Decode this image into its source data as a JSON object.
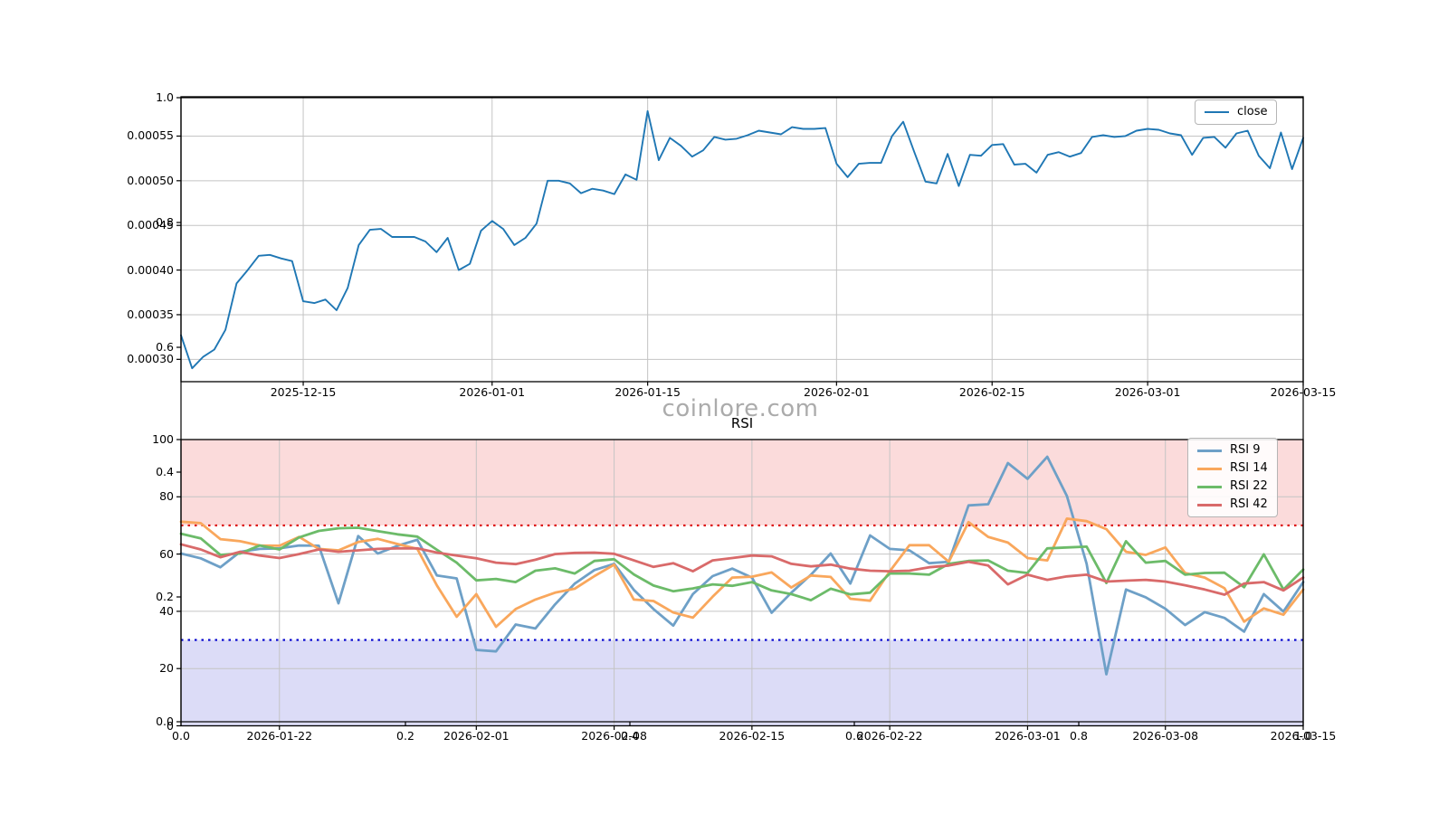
{
  "watermark": "coinlore.com",
  "figure": {
    "background": "#ffffff",
    "grid_color": "#c4c4c4",
    "spine_color": "#000000"
  },
  "overlay_axis": {
    "y_tick_labels": [
      "1.0",
      "0.8",
      "0.6",
      "0.4",
      "0.2",
      "0.0"
    ],
    "x_tick_labels": [
      "0.0",
      "0.2",
      "0.4",
      "0.6",
      "0.8",
      "1.0"
    ]
  },
  "chart_data": [
    {
      "id": "price",
      "type": "line",
      "title": "",
      "x_start_date": "2025-12-04",
      "x_end_date": "2026-03-15",
      "x_unit": "day",
      "legend_position": "upper right",
      "grid": true,
      "ylim": [
        0.000275,
        0.000594
      ],
      "x_ticks": [
        {
          "label": "2025-12-15",
          "index": 11
        },
        {
          "label": "2026-01-01",
          "index": 28
        },
        {
          "label": "2026-01-15",
          "index": 42
        },
        {
          "label": "2026-02-01",
          "index": 59
        },
        {
          "label": "2026-02-15",
          "index": 73
        },
        {
          "label": "2026-03-01",
          "index": 87
        },
        {
          "label": "2026-03-15",
          "index": 101
        }
      ],
      "y_ticks": [
        {
          "label": "0.00055",
          "value": 0.00055
        },
        {
          "label": "0.00050",
          "value": 0.0005
        },
        {
          "label": "0.00045",
          "value": 0.00045
        },
        {
          "label": "0.00040",
          "value": 0.0004
        },
        {
          "label": "0.00035",
          "value": 0.00035
        },
        {
          "label": "0.00030",
          "value": 0.0003
        }
      ],
      "series": [
        {
          "name": "close",
          "color": "#1f77b4",
          "values": [
            0.000327,
            0.00029,
            0.000303,
            0.000311,
            0.000333,
            0.000385,
            0.0004,
            0.000416,
            0.000417,
            0.000413,
            0.00041,
            0.000365,
            0.000363,
            0.000367,
            0.000355,
            0.00038,
            0.000428,
            0.000445,
            0.000446,
            0.000437,
            0.000437,
            0.000437,
            0.000432,
            0.00042,
            0.000436,
            0.0004,
            0.000407,
            0.000444,
            0.000455,
            0.000446,
            0.000428,
            0.000436,
            0.000452,
            0.0005,
            0.0005,
            0.000497,
            0.000486,
            0.000491,
            0.000489,
            0.000485,
            0.000507,
            0.000501,
            0.000578,
            0.000523,
            0.000548,
            0.000539,
            0.000527,
            0.000534,
            0.000549,
            0.000546,
            0.000547,
            0.000551,
            0.000556,
            0.000554,
            0.000552,
            0.00056,
            0.000558,
            0.000558,
            0.000559,
            0.000519,
            0.000504,
            0.000519,
            0.00052,
            0.00052,
            0.00055,
            0.000566,
            0.000532,
            0.000499,
            0.000497,
            0.00053,
            0.000494,
            0.000529,
            0.000528,
            0.00054,
            0.000541,
            0.000518,
            0.000519,
            0.000509,
            0.000529,
            0.000532,
            0.000527,
            0.000531,
            0.000549,
            0.000551,
            0.000549,
            0.00055,
            0.000556,
            0.000558,
            0.000557,
            0.000553,
            0.000551,
            0.000529,
            0.000548,
            0.000549,
            0.000537,
            0.000553,
            0.000556,
            0.000528,
            0.000514,
            0.000554,
            0.000513,
            0.000548
          ]
        }
      ]
    },
    {
      "id": "rsi",
      "type": "line",
      "title": "RSI",
      "x_start_date": "2026-01-17",
      "x_end_date": "2026-03-15",
      "x_unit": "day",
      "legend_position": "upper right",
      "grid": true,
      "ylim": [
        0,
        100
      ],
      "bands": [
        {
          "name": "overbought",
          "from": 70,
          "to": 100,
          "color": "#fbdbdb"
        },
        {
          "name": "oversold",
          "from": 0,
          "to": 30,
          "color": "#dcdcf7"
        }
      ],
      "thresholds": [
        {
          "value": 70,
          "color": "#dc0000",
          "style": "dotted"
        },
        {
          "value": 30,
          "color": "#0000cd",
          "style": "dotted"
        }
      ],
      "x_ticks": [
        {
          "label": "2026-01-22",
          "index": 5
        },
        {
          "label": "2026-02-01",
          "index": 15
        },
        {
          "label": "2026-02-08",
          "index": 22
        },
        {
          "label": "2026-02-15",
          "index": 29
        },
        {
          "label": "2026-02-22",
          "index": 36
        },
        {
          "label": "2026-03-01",
          "index": 43
        },
        {
          "label": "2026-03-08",
          "index": 50
        },
        {
          "label": "2026-03-15",
          "index": 57
        }
      ],
      "y_ticks": [
        {
          "label": "100",
          "value": 100
        },
        {
          "label": "80",
          "value": 80
        },
        {
          "label": "60",
          "value": 60
        },
        {
          "label": "40",
          "value": 40
        },
        {
          "label": "20",
          "value": 20
        },
        {
          "label": "0",
          "value": 0
        }
      ],
      "series": [
        {
          "name": "RSI 9",
          "color": "#6ea0c7",
          "values": [
            60.2,
            58.5,
            55.4,
            60.8,
            61.8,
            62.0,
            63.0,
            62.9,
            42.8,
            66.3,
            60.2,
            62.9,
            65.0,
            52.5,
            51.5,
            26.5,
            26.0,
            35.4,
            34.0,
            42.4,
            49.7,
            54.4,
            56.6,
            47.5,
            40.8,
            35.0,
            46.0,
            52.3,
            54.9,
            51.8,
            39.5,
            46.5,
            52.8,
            60.2,
            49.7,
            66.5,
            61.8,
            61.3,
            56.8,
            57.3,
            77.0,
            77.4,
            91.8,
            86.3,
            94.0,
            80.3,
            56.6,
            18.0,
            47.6,
            44.9,
            40.9,
            35.2,
            39.7,
            37.7,
            32.9,
            46.0,
            39.9,
            50.2
          ]
        },
        {
          "name": "RSI 14",
          "color": "#f9a75c",
          "values": [
            71.3,
            70.8,
            65.2,
            64.5,
            63.0,
            62.9,
            66.0,
            61.8,
            61.3,
            64.2,
            65.3,
            63.5,
            61.8,
            49.0,
            38.1,
            46.0,
            34.6,
            40.8,
            44.1,
            46.5,
            47.9,
            52.3,
            56.3,
            44.1,
            43.6,
            39.6,
            37.8,
            45.1,
            51.8,
            52.1,
            53.6,
            48.3,
            52.5,
            52.0,
            44.4,
            43.7,
            54.0,
            63.1,
            63.1,
            57.3,
            71.2,
            66.0,
            64.0,
            58.6,
            57.8,
            72.4,
            71.5,
            68.7,
            60.8,
            59.7,
            62.3,
            53.4,
            51.8,
            48.1,
            36.4,
            41.0,
            38.8,
            47.6
          ]
        },
        {
          "name": "RSI 22",
          "color": "#6cbb69",
          "values": [
            67.1,
            65.5,
            59.7,
            60.2,
            63.0,
            61.6,
            65.8,
            68.1,
            69.0,
            69.2,
            68.0,
            66.9,
            66.1,
            61.5,
            57.0,
            50.8,
            51.3,
            50.2,
            54.2,
            55.0,
            53.2,
            57.6,
            58.2,
            52.9,
            49.0,
            47.0,
            48.0,
            49.4,
            48.9,
            50.2,
            47.3,
            46.0,
            43.9,
            47.9,
            45.9,
            46.5,
            53.2,
            53.2,
            52.8,
            56.6,
            57.6,
            57.8,
            54.2,
            53.4,
            62.0,
            62.3,
            62.6,
            49.9,
            64.5,
            57.0,
            57.6,
            52.8,
            53.4,
            53.5,
            48.4,
            59.9,
            47.6,
            54.6
          ]
        },
        {
          "name": "RSI 42",
          "color": "#d96a6a",
          "values": [
            63.4,
            61.6,
            58.9,
            60.8,
            59.5,
            58.6,
            60.0,
            61.6,
            60.8,
            61.3,
            61.8,
            62.0,
            62.0,
            60.5,
            59.5,
            58.5,
            57.0,
            56.5,
            58.0,
            60.0,
            60.4,
            60.5,
            60.1,
            57.8,
            55.5,
            56.8,
            54.0,
            57.8,
            58.6,
            59.5,
            59.2,
            56.6,
            55.7,
            56.3,
            54.9,
            54.2,
            54.0,
            54.2,
            55.4,
            56.0,
            57.3,
            56.0,
            49.4,
            52.8,
            51.0,
            52.2,
            52.8,
            50.4,
            50.7,
            51.0,
            50.4,
            49.1,
            47.6,
            45.8,
            49.7,
            50.2,
            47.3,
            51.8
          ]
        }
      ]
    }
  ]
}
